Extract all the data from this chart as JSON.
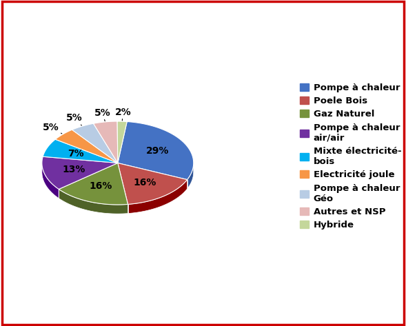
{
  "legend_labels": [
    "Pompe à chaleur",
    "Poele Bois",
    "Gaz Naturel",
    "Pompe à chaleur\nair/air",
    "Mixte électricité-\nbois",
    "Electricité joule",
    "Pompe à chaleur\nGéo",
    "Autres et NSP",
    "Hybride"
  ],
  "values": [
    29,
    16,
    16,
    13,
    7,
    5,
    5,
    5,
    2
  ],
  "pct_labels": [
    "29%",
    "16%",
    "16%",
    "13%",
    "7%",
    "5%",
    "5%",
    "5%",
    "2%"
  ],
  "colors": [
    "#4472C4",
    "#C0504D",
    "#76923C",
    "#7030A0",
    "#00B0F0",
    "#F79646",
    "#B8CCE4",
    "#E6B9B8",
    "#C4D79B"
  ],
  "colors_dark": [
    "#2F5597",
    "#8B0000",
    "#4F6228",
    "#4B0082",
    "#007BA7",
    "#C05A0A",
    "#8096B4",
    "#C09090",
    "#96A86B"
  ],
  "startangle": 83,
  "background_color": "#FFFFFF",
  "border_color": "#CC0000",
  "text_color": "#000000",
  "font_size": 10,
  "legend_font_size": 9.5
}
